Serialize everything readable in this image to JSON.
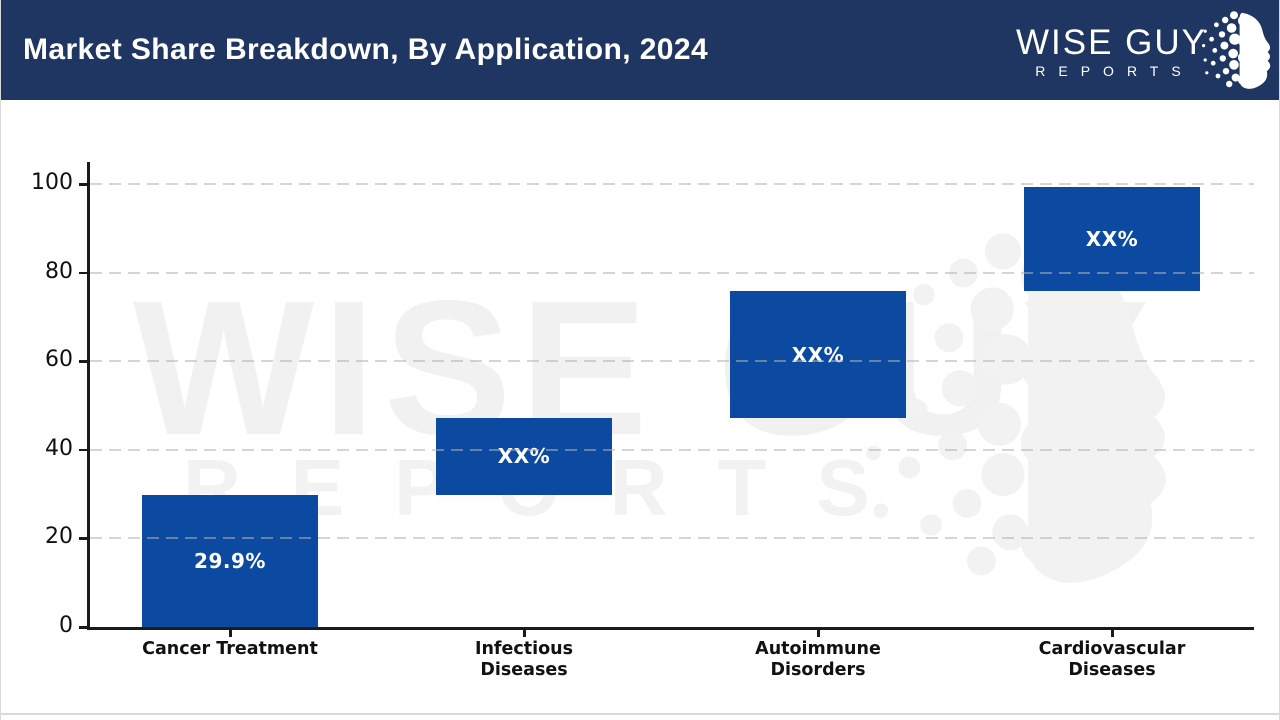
{
  "header": {
    "title": "Market Share Breakdown, By Application, 2024",
    "bg_color": "#203662",
    "logo": {
      "line1": "WISE GUY",
      "line2": "REPORTS"
    }
  },
  "watermark": {
    "line1": "WISE GUY",
    "line2": "REPORTS"
  },
  "chart_data": {
    "type": "bar",
    "subtype": "waterfall-stacked-percent",
    "title": "Market Share Breakdown, By Application, 2024",
    "xlabel": "",
    "ylabel": "",
    "ylim": [
      0,
      105
    ],
    "yticks": [
      0,
      20,
      40,
      60,
      80,
      100
    ],
    "grid": "dashed-horizontal-over-bars",
    "legend": "none",
    "bar_color": "#0c4aa1",
    "grid_color": "rgba(178,178,178,0.55)",
    "categories": [
      [
        "Cancer Treatment"
      ],
      [
        "Infectious",
        "Diseases"
      ],
      [
        "Autoimmune",
        "Disorders"
      ],
      [
        "Cardiovascular",
        "Diseases"
      ]
    ],
    "segments": [
      {
        "category": "Cancer Treatment",
        "start": 0,
        "end": 29.9,
        "value": 29.9,
        "value_label": "29.9%"
      },
      {
        "category": "Infectious Diseases",
        "start": 29.9,
        "end": 47.2,
        "value": 17.3,
        "value_label": "XX%"
      },
      {
        "category": "Autoimmune Disorders",
        "start": 47.2,
        "end": 75.8,
        "value": 28.6,
        "value_label": "XX%"
      },
      {
        "category": "Cardiovascular Diseases",
        "start": 75.8,
        "end": 99.4,
        "value": 23.6,
        "value_label": "XX%"
      }
    ]
  }
}
